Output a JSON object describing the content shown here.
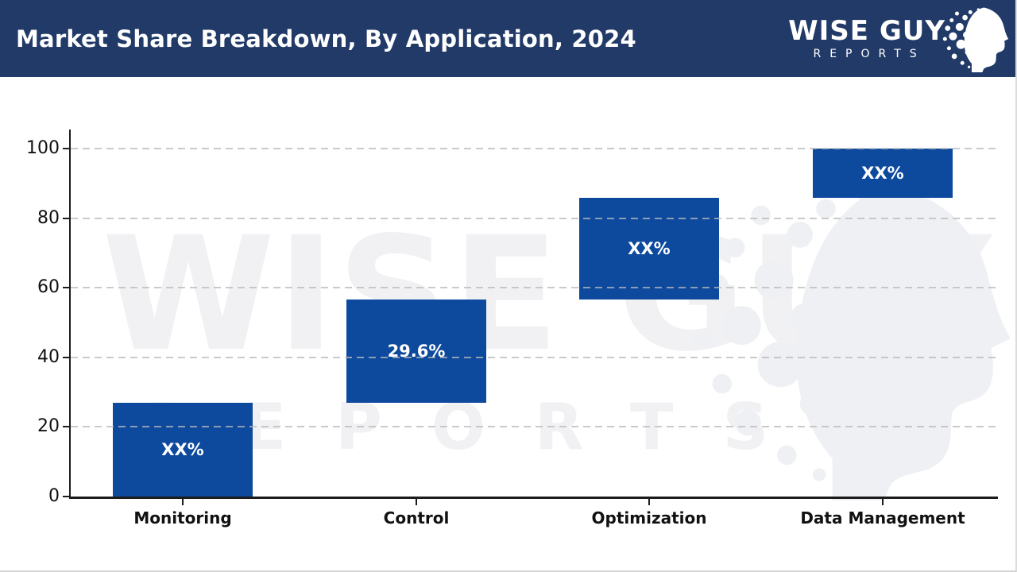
{
  "header": {
    "title": "Market Share Breakdown, By Application, 2024",
    "logo": {
      "line1": "WISE GUY",
      "line2": "REPORTS"
    }
  },
  "watermark": {
    "line1": "WISE GUY",
    "line2": "REPORTS"
  },
  "chart_data": {
    "type": "bar",
    "subtype": "floating_waterfall_bars",
    "title": "Market Share Breakdown, By Application, 2024",
    "categories": [
      "Monitoring",
      "Control",
      "Optimization",
      "Data Management"
    ],
    "segments": [
      {
        "category": "Monitoring",
        "start": 0,
        "end": 27,
        "label": "XX%"
      },
      {
        "category": "Control",
        "start": 27,
        "end": 56.6,
        "label": "29.6%"
      },
      {
        "category": "Optimization",
        "start": 56.6,
        "end": 85.8,
        "label": "XX%"
      },
      {
        "category": "Data Management",
        "start": 85.8,
        "end": 100,
        "label": "XX%"
      }
    ],
    "xlabel": "",
    "ylabel": "",
    "ylim": [
      0,
      100
    ],
    "yticks": [
      0,
      20,
      40,
      60,
      80,
      100
    ],
    "grid": "horizontal_dashed_drawn_over_bars",
    "legend": "none",
    "colors": {
      "bar": "#0d4a9e",
      "bar_label": "#ffffff",
      "axis": "#1c1c1c",
      "gridline": "#bdbdbd",
      "header_bg": "#223a68",
      "header_text": "#ffffff",
      "watermark": "#f1f1f4"
    }
  }
}
